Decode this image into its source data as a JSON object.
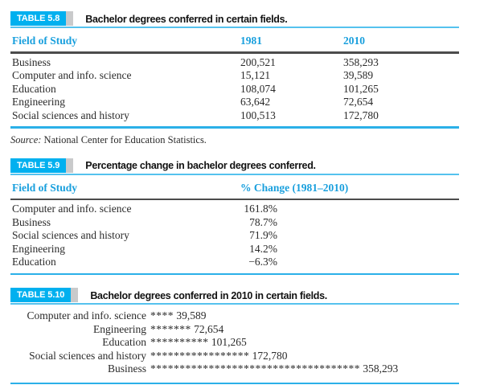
{
  "colors": {
    "badge_cyan": "#00b0ef",
    "rule_cyan": "#2bb0e8",
    "rule_dark": "#4c4c4c",
    "header_text_cyan": "#189fdd",
    "badge_tail_gray": "#c9cacb",
    "body_text": "#2a2a2a"
  },
  "table_58": {
    "badge": "TABLE 5.8",
    "title": "Bachelor degrees conferred in certain fields.",
    "col_field": "Field of Study",
    "col_1981": "1981",
    "col_2010": "2010",
    "rows": [
      {
        "field": "Business",
        "v1981": "200,521",
        "v2010": "358,293"
      },
      {
        "field": "Computer and info. science",
        "v1981": "15,121",
        "v2010": "39,589"
      },
      {
        "field": "Education",
        "v1981": "108,074",
        "v2010": "101,265"
      },
      {
        "field": "Engineering",
        "v1981": "63,642",
        "v2010": "72,654"
      },
      {
        "field": "Social sciences and history",
        "v1981": "100,513",
        "v2010": "172,780"
      }
    ],
    "source_label": "Source:",
    "source_text": " National Center for Education Statistics."
  },
  "table_59": {
    "badge": "TABLE 5.9",
    "title": "Percentage change in bachelor degrees conferred.",
    "col_field": "Field of Study",
    "col_change": "% Change (1981–2010)",
    "rows": [
      {
        "field": "Computer and info. science",
        "change": "161.8%"
      },
      {
        "field": "Business",
        "change": "78.7%"
      },
      {
        "field": "Social sciences and history",
        "change": "71.9%"
      },
      {
        "field": "Engineering",
        "change": "14.2%"
      },
      {
        "field": "Education",
        "change": "−6.3%"
      }
    ]
  },
  "table_510": {
    "badge": "TABLE 5.10",
    "title": "Bachelor degrees conferred in 2010 in certain fields.",
    "rows": [
      {
        "field": "Computer and info. science",
        "star_count": 4,
        "stars": "****",
        "value": "39,589"
      },
      {
        "field": "Engineering",
        "star_count": 7,
        "stars": "*******",
        "value": "72,654"
      },
      {
        "field": "Education",
        "star_count": 10,
        "stars": "**********",
        "value": "101,265"
      },
      {
        "field": "Social sciences and history",
        "star_count": 17,
        "stars": "*****************",
        "value": "172,780"
      },
      {
        "field": "Business",
        "star_count": 36,
        "stars": "************************************",
        "value": "358,293"
      }
    ]
  }
}
